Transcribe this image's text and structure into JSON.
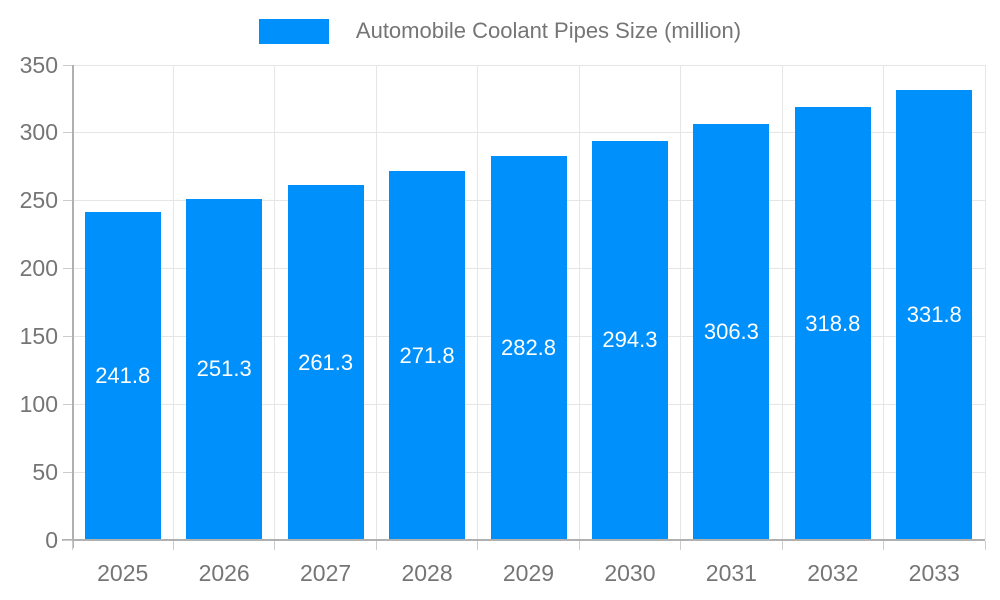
{
  "legend": {
    "label": "Automobile Coolant Pipes Size (million)",
    "swatch_color": "#0090fb"
  },
  "chart_data": {
    "type": "bar",
    "title": "Automobile Coolant Pipes Size (million)",
    "categories": [
      "2025",
      "2026",
      "2027",
      "2028",
      "2029",
      "2030",
      "2031",
      "2032",
      "2033"
    ],
    "series": [
      {
        "name": "Automobile Coolant Pipes Size (million)",
        "values": [
          241.8,
          251.3,
          261.3,
          271.8,
          282.8,
          294.3,
          306.3,
          318.8,
          331.8
        ]
      }
    ],
    "value_labels": [
      "241.8",
      "251.3",
      "261.3",
      "271.8",
      "282.8",
      "294.3",
      "306.3",
      "318.8",
      "331.8"
    ],
    "xlabel": "",
    "ylabel": "",
    "ylim": [
      0,
      350
    ],
    "ytick_step": 50,
    "ytick_labels": [
      "0",
      "50",
      "100",
      "150",
      "200",
      "250",
      "300",
      "350"
    ],
    "grid": true,
    "legend_position": "top"
  },
  "colors": {
    "bar": "#0090fb",
    "axis_line": "#b0b0b0",
    "gridline": "#e6e6e6",
    "tick": "#cccccc",
    "label_text": "#757575",
    "value_text": "#ffffff",
    "background": "#ffffff"
  }
}
